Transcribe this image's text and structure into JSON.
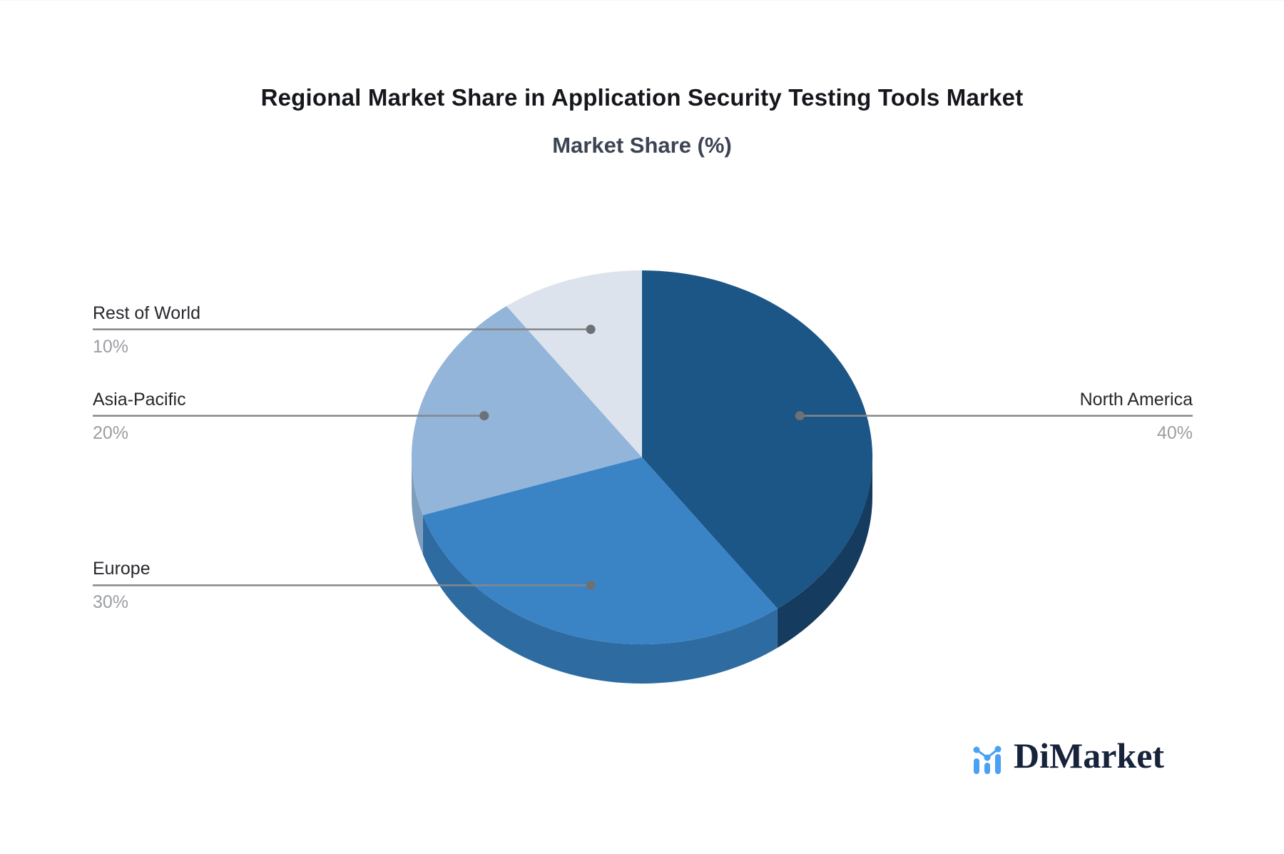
{
  "page": {
    "background": "#ffffff"
  },
  "chart_data": {
    "type": "pie",
    "projection": "3d",
    "title": "Regional Market Share in Application Security Testing Tools Market",
    "subtitle": "Market Share (%)",
    "unit": "%",
    "direction": "clockwise",
    "start_angle_deg": 0,
    "legend": "none",
    "label_style": "callout",
    "slices": [
      {
        "label": "North America",
        "value": 40,
        "pct_label": "40%",
        "color": "#1b5687",
        "side_color": "#153c5f",
        "label_side": "right"
      },
      {
        "label": "Europe",
        "value": 30,
        "pct_label": "30%",
        "color": "#3a84c6",
        "side_color": "#2e6ba1",
        "label_side": "left"
      },
      {
        "label": "Asia-Pacific",
        "value": 20,
        "pct_label": "20%",
        "color": "#92b5d9",
        "side_color": "#7f9dbd",
        "label_side": "left"
      },
      {
        "label": "Rest of World",
        "value": 10,
        "pct_label": "10%",
        "color": "#dde3ed",
        "side_color": "#c7d1e0",
        "label_side": "left"
      }
    ],
    "callout": {
      "line_color": "#85878a",
      "dot_color": "#6d7176",
      "label_color": "#26282c",
      "pct_color": "#9b9ea3"
    },
    "title_color": "#15171c",
    "subtitle_color": "#3c4454"
  },
  "logo": {
    "text": "DiMarket",
    "icon": "bar-line-chart-icon",
    "text_color": "#16233b",
    "accent_color": "#4aa0f4"
  }
}
